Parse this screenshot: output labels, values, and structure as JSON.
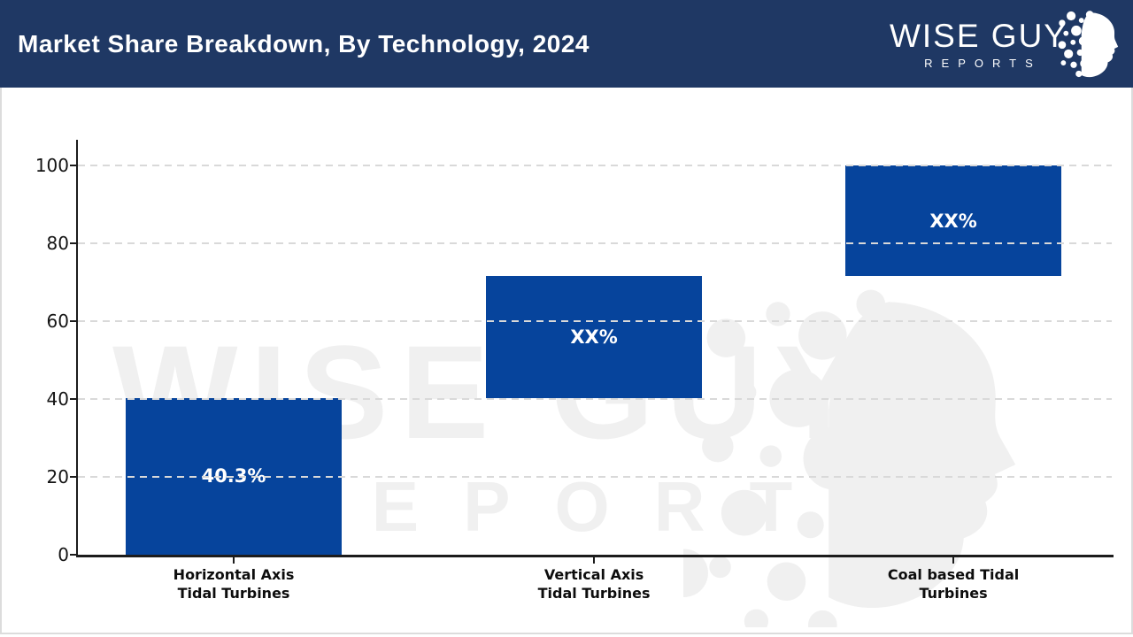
{
  "header": {
    "title": "Market Share Breakdown, By Technology, 2024",
    "bg_color": "#1f3864",
    "logo": {
      "line1": "WISE GUY",
      "line2": "REPORTS",
      "face_icon": "dotted-face-profile"
    }
  },
  "watermark": {
    "line1": "WISE GUY",
    "line2": "REPORTS",
    "face_icon": "dotted-face-profile"
  },
  "chart_data": {
    "type": "bar",
    "subtype": "waterfall",
    "title": "Market Share Breakdown, By Technology, 2024",
    "xlabel": "",
    "ylabel": "",
    "ylim": [
      0,
      106
    ],
    "yticks": [
      0,
      20,
      40,
      60,
      80,
      100
    ],
    "grid": "horizontal-dashed",
    "legend": "none",
    "bar_color": "#06449c",
    "value_label_color": "#ffffff",
    "categories": [
      {
        "line1": "Horizontal Axis",
        "line2": "Tidal Turbines"
      },
      {
        "line1": "Vertical Axis",
        "line2": "Tidal Turbines"
      },
      {
        "line1": "Coal based Tidal",
        "line2": "Turbines"
      }
    ],
    "segments": [
      {
        "category": "Horizontal Axis Tidal Turbines",
        "label": "40.3%",
        "start": 0,
        "end": 40.3
      },
      {
        "category": "Vertical Axis Tidal Turbines",
        "label": "XX%",
        "start": 40.3,
        "end": 71.5
      },
      {
        "category": "Coal based Tidal Turbines",
        "label": "XX%",
        "start": 71.5,
        "end": 100
      }
    ]
  }
}
